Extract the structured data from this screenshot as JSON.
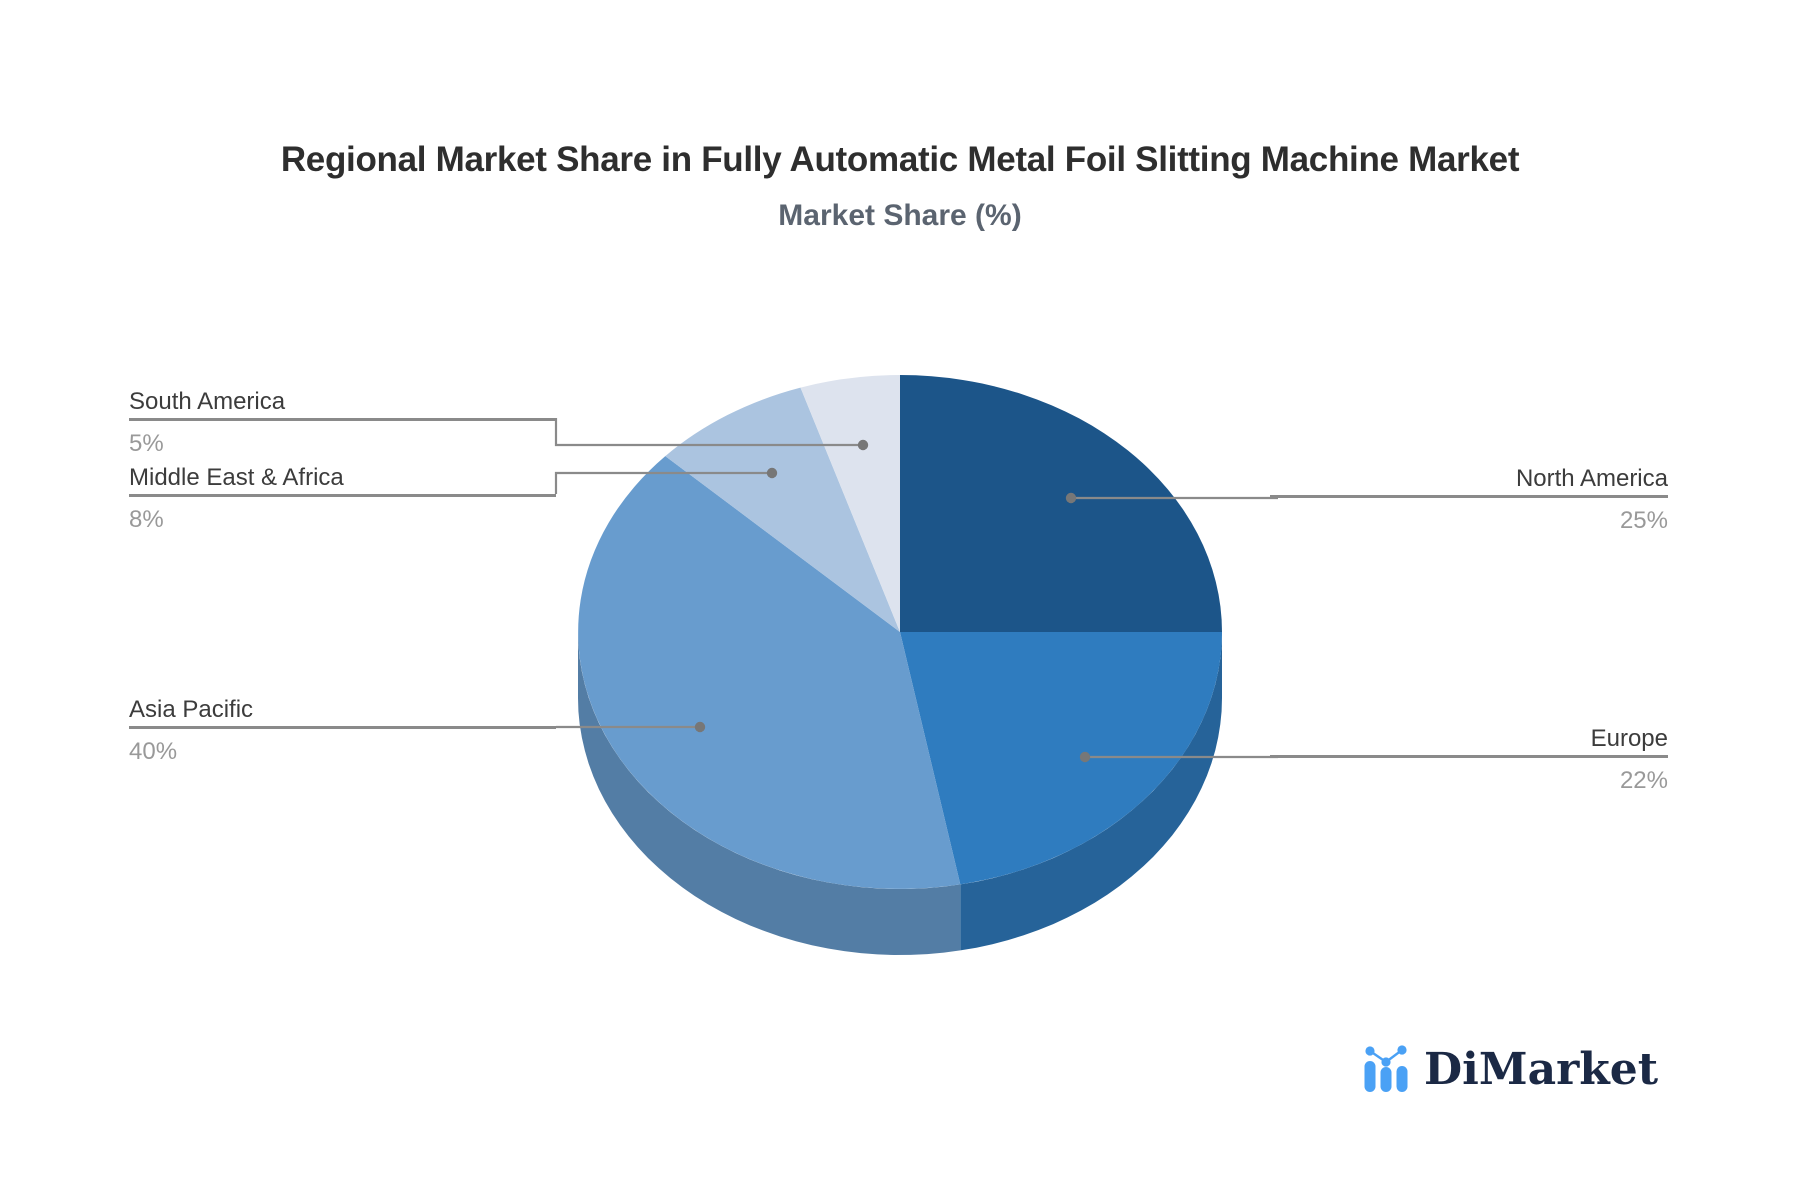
{
  "title": "Regional Market Share in Fully Automatic Metal Foil Slitting Machine Market",
  "subtitle": "Market Share (%)",
  "brand": {
    "name": "DiMarket",
    "icon": "bar-line-chart-logo-icon",
    "text_color": "#1b2945",
    "accent_color": "#4aa1f5"
  },
  "chart_data": {
    "type": "pie",
    "style": "3d",
    "title": "Regional Market Share in Fully Automatic Metal Foil Slitting Machine Market",
    "subtitle": "Market Share (%)",
    "unit": "%",
    "start_angle_deg": 0,
    "direction": "clockwise",
    "legend_position": "callout-labels",
    "leader_line_color": "#8a8a8a",
    "label_text_color": "#3c3c3c",
    "pct_text_color": "#999999",
    "slices": [
      {
        "label": "North America",
        "value": 25,
        "pct_label": "25%",
        "color": "#1c5589",
        "label_side": "right"
      },
      {
        "label": "Europe",
        "value": 22,
        "pct_label": "22%",
        "color": "#2f7cbf",
        "label_side": "right"
      },
      {
        "label": "Asia Pacific",
        "value": 40,
        "pct_label": "40%",
        "color": "#689cce",
        "label_side": "left"
      },
      {
        "label": "Middle East & Africa",
        "value": 8,
        "pct_label": "8%",
        "color": "#abc4e0",
        "label_side": "left"
      },
      {
        "label": "South America",
        "value": 5,
        "pct_label": "5%",
        "color": "#dde3ee",
        "label_side": "left"
      }
    ]
  }
}
